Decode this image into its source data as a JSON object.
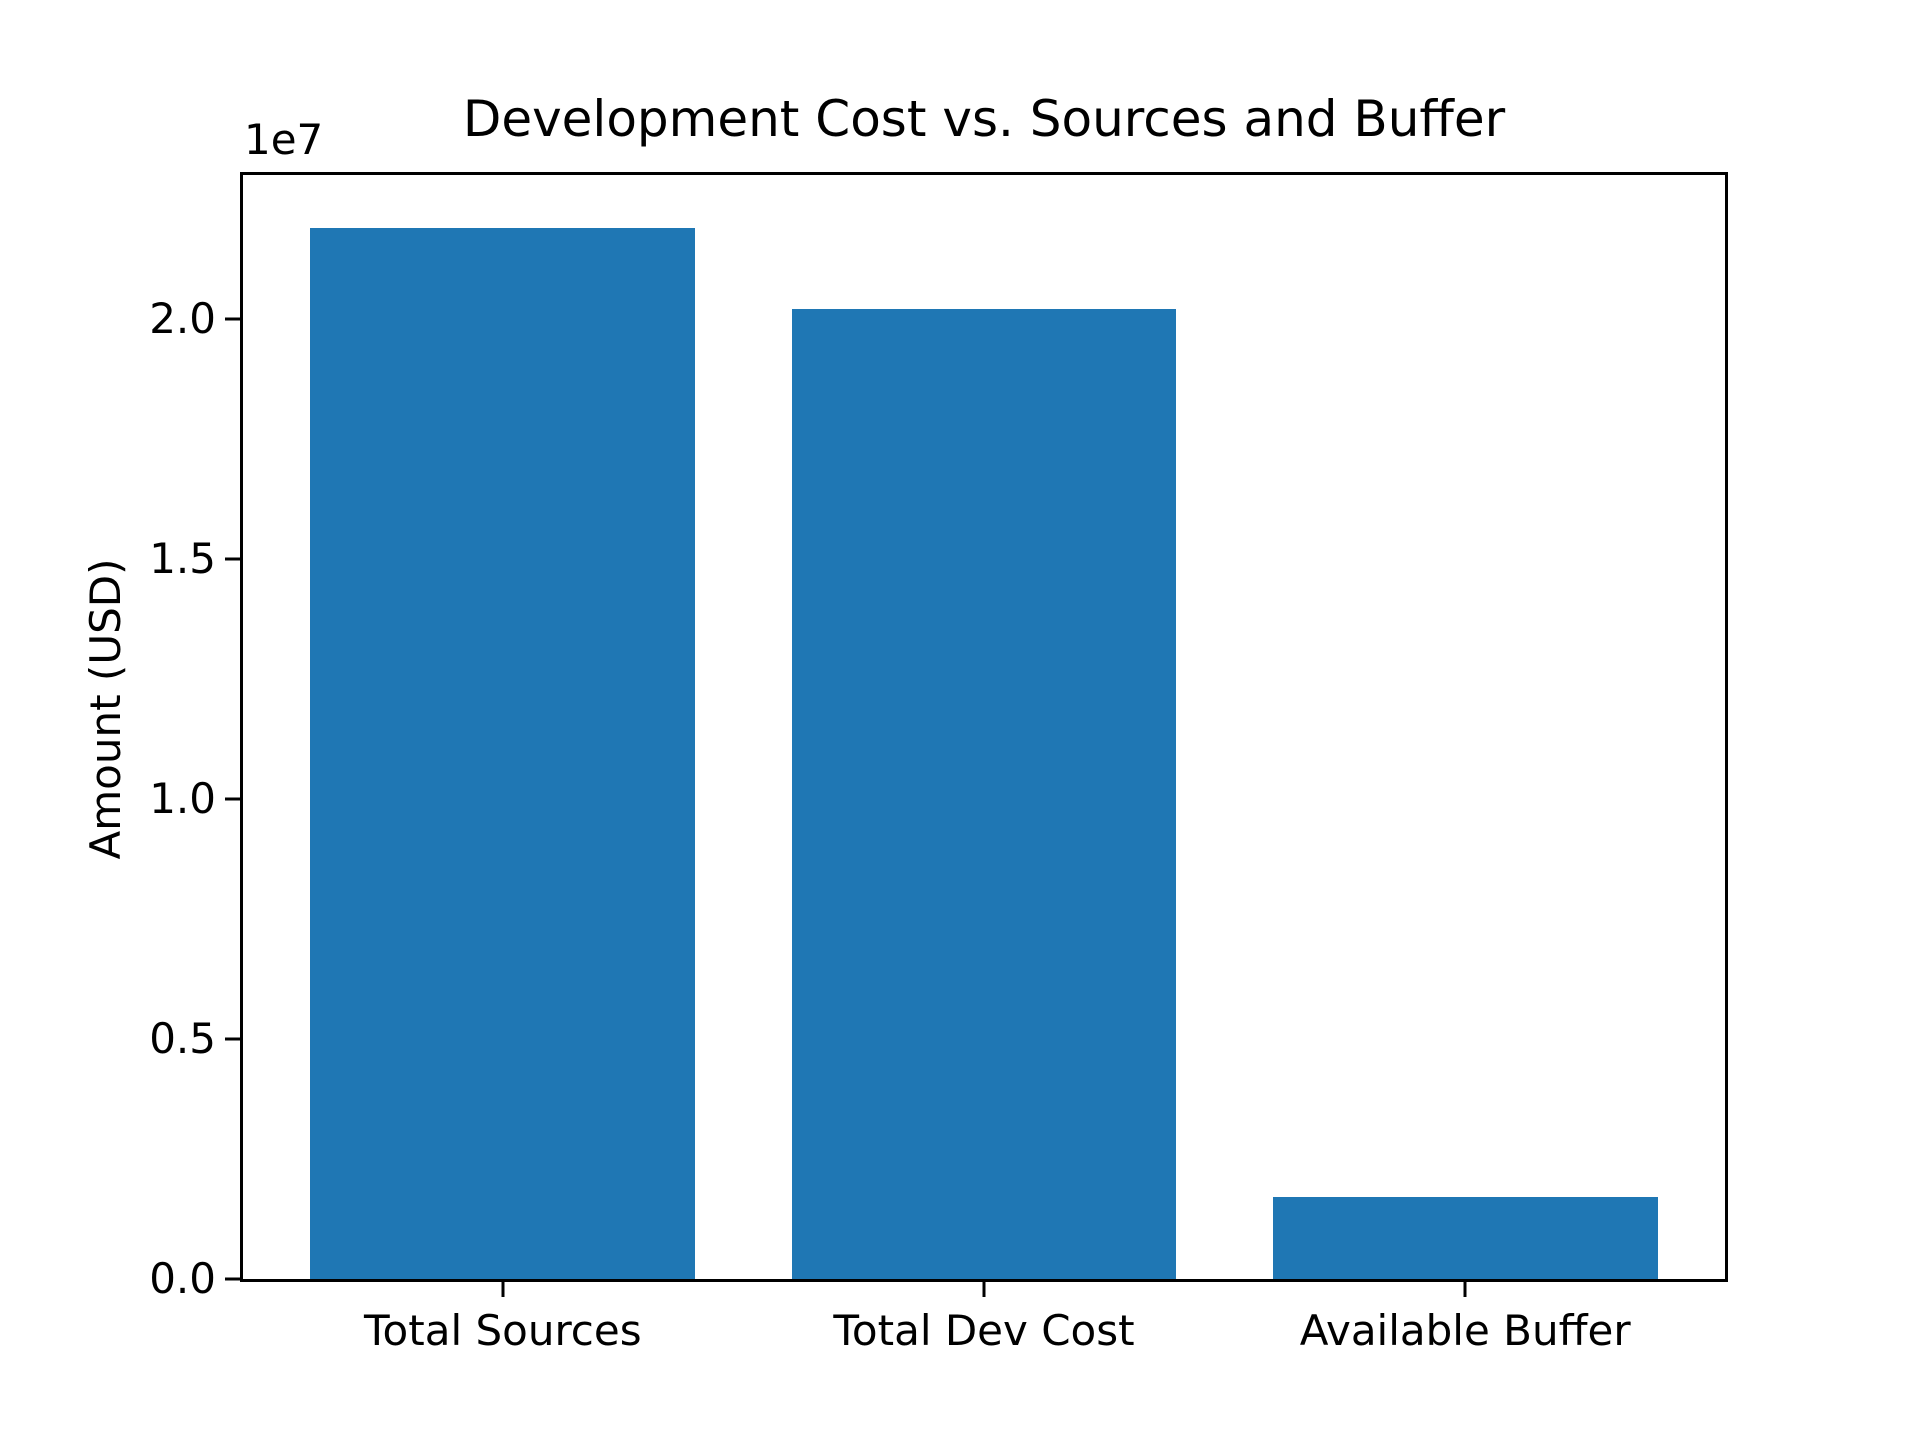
{
  "figure": {
    "background": "#ffffff",
    "text_color": "#000000"
  },
  "chart_data": {
    "type": "bar",
    "title": "Development Cost vs. Sources and Buffer",
    "categories": [
      "Total Sources",
      "Total Dev Cost",
      "Available Buffer"
    ],
    "values": [
      21900000,
      20200000,
      1700000
    ],
    "xlabel": "",
    "ylabel": "Amount (USD)",
    "offset_text": "1e7",
    "ylim": [
      0,
      22995000
    ],
    "xlim": [
      -0.54,
      2.54
    ],
    "bar_width": 0.8,
    "bar_color": "#1f77b4",
    "yticks": {
      "values": [
        0,
        5000000,
        10000000,
        15000000,
        20000000
      ],
      "labels": [
        "0.0",
        "0.5",
        "1.0",
        "1.5",
        "2.0"
      ]
    },
    "grid": false,
    "legend": null
  }
}
